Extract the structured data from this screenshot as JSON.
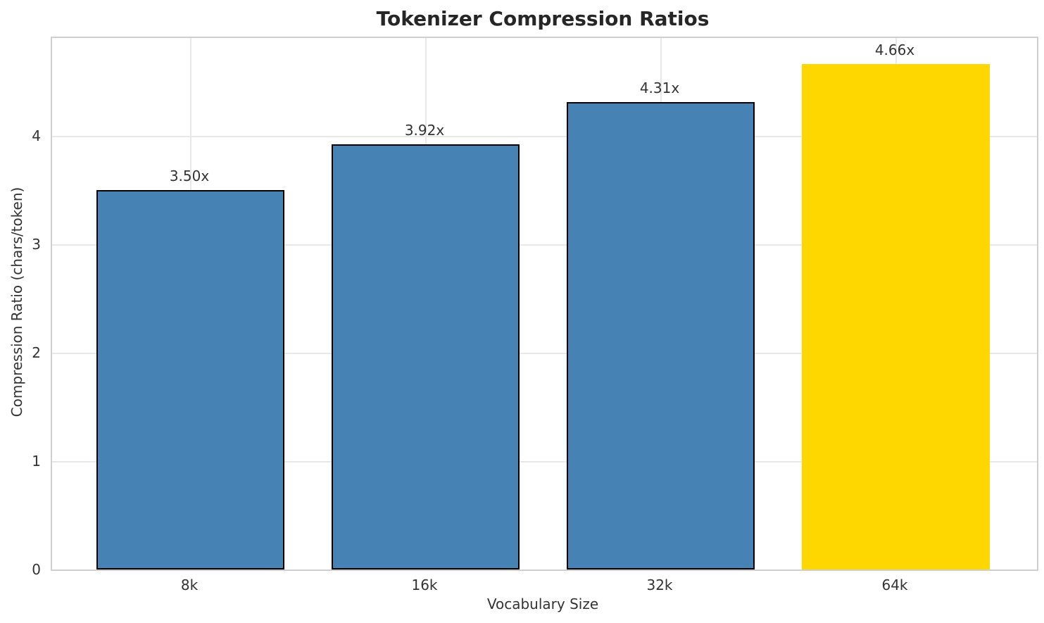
{
  "chart_data": {
    "type": "bar",
    "title": "Tokenizer Compression Ratios",
    "xlabel": "Vocabulary Size",
    "ylabel": "Compression Ratio (chars/token)",
    "categories": [
      "8k",
      "16k",
      "32k",
      "64k"
    ],
    "values": [
      3.5,
      3.92,
      4.31,
      4.66
    ],
    "value_labels": [
      "3.50x",
      "3.92x",
      "4.31x",
      "4.66x"
    ],
    "yticks": [
      0,
      1,
      2,
      3,
      4
    ],
    "ylim": [
      0,
      4.9
    ],
    "grid": true,
    "legend": "none",
    "bar_fill_colors": [
      "#4682B4",
      "#4682B4",
      "#4682B4",
      "#FFD700"
    ],
    "bar_edge_colors": [
      "#000000",
      "#000000",
      "#000000",
      "#FFD700"
    ],
    "highlight_index": 3
  },
  "colors": {
    "bar_default": "#4682B4",
    "bar_highlight": "#FFD700",
    "bar_edge": "#000000",
    "grid": "#e8e8e8",
    "spine": "#cfcfcf",
    "text": "#333333",
    "title": "#262626",
    "background": "#ffffff"
  }
}
